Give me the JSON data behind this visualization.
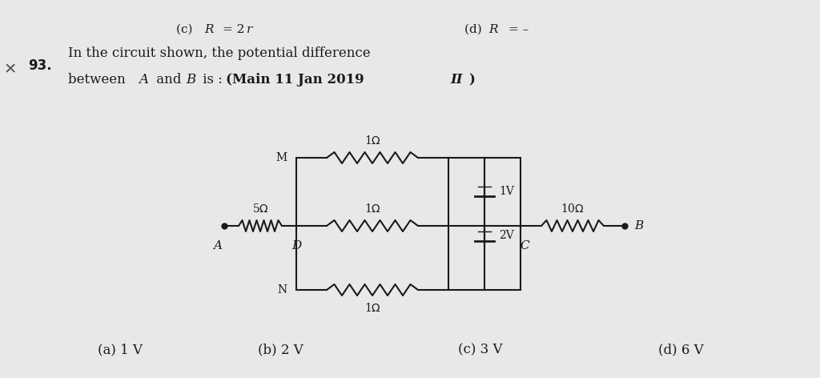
{
  "bg_color": "#e8e8e8",
  "text_color": "#1a1a1a",
  "line_color": "#1a1a1a",
  "title_line1": "93. In the circuit shown, the potential difference",
  "title_line2": "between ",
  "title_line2b": "A",
  "title_line2c": " and ",
  "title_line2d": "B",
  "title_line2e": " is : (Main 11 Jan 2019 ",
  "title_line2f": "II",
  "title_line2g": ")",
  "prev_c": "(c) ",
  "prev_r": "R",
  "prev_eq": " = 2",
  "prev_r2": "r",
  "prev_d": "(d) ",
  "prev_k": "R",
  "prev_dash": " –",
  "answer_a": "(a) 1 V",
  "answer_b": "(b) 2 V",
  "answer_c": "(c) 3 V",
  "answer_d": "(d) 6 V",
  "resistor_color": "#1a1a1a",
  "battery_color": "#1a1a1a",
  "node_color": "#1a1a1a"
}
